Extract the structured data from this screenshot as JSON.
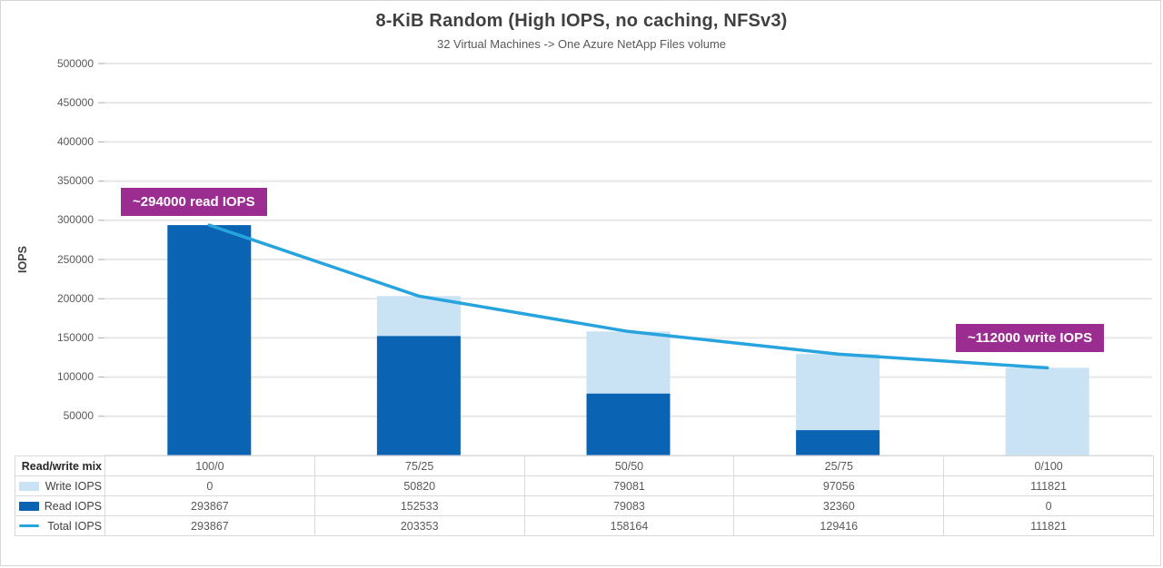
{
  "chart_data": {
    "type": "bar",
    "subtype": "stacked-column-with-line-overlay",
    "title": "8-KiB Random (High IOPS, no caching, NFSv3)",
    "subtitle": "32 Virtual Machines -> One Azure NetApp Files volume",
    "ylabel": "IOPS",
    "xlabel": "Read/write mix",
    "ylim": [
      0,
      500000
    ],
    "ytick_interval": 50000,
    "grid": true,
    "legend_position": "left-of-data-table-rows",
    "categories": [
      "100/0",
      "75/25",
      "50/50",
      "25/75",
      "0/100"
    ],
    "series": [
      {
        "name": "Write IOPS",
        "type": "bar",
        "stack_level": 1,
        "color": "#C9E2F4",
        "values": [
          0,
          50820,
          79081,
          97056,
          111821
        ]
      },
      {
        "name": "Read IOPS",
        "type": "bar",
        "stack_level": 0,
        "color": "#0B63B4",
        "values": [
          293867,
          152533,
          79083,
          32360,
          0
        ]
      },
      {
        "name": "Total IOPS",
        "type": "line",
        "color": "#27A4DE",
        "values": [
          293867,
          203353,
          158164,
          129416,
          111821
        ]
      }
    ],
    "annotations": [
      {
        "text": "~294000 read IOPS",
        "anchor": "top of 100/0 read bar",
        "bg_color": "#9B2D91",
        "text_color": "#FFFFFF"
      },
      {
        "text": "~112000 write IOPS",
        "anchor": "above 0/100 write bar",
        "bg_color": "#9B2D91",
        "text_color": "#FFFFFF"
      }
    ],
    "colors": {
      "gridline": "#E7E7E7",
      "tick_mark": "#ABABAB",
      "axis_line": "#D9D9D9",
      "title_text": "#404040",
      "tick_text": "#595959"
    }
  },
  "table": {
    "header_label": "Read/write mix",
    "rows": [
      {
        "label": "Read/write mix",
        "bold": true,
        "swatch": null,
        "values": [
          "100/0",
          "75/25",
          "50/50",
          "25/75",
          "0/100"
        ]
      },
      {
        "label": "Write IOPS",
        "bold": false,
        "swatch": "write",
        "values": [
          "0",
          "50820",
          "79081",
          "97056",
          "111821"
        ]
      },
      {
        "label": "Read IOPS",
        "bold": false,
        "swatch": "read",
        "values": [
          "293867",
          "152533",
          "79083",
          "32360",
          "0"
        ]
      },
      {
        "label": "Total IOPS",
        "bold": false,
        "swatch": "line",
        "values": [
          "293867",
          "203353",
          "158164",
          "129416",
          "111821"
        ]
      }
    ]
  }
}
